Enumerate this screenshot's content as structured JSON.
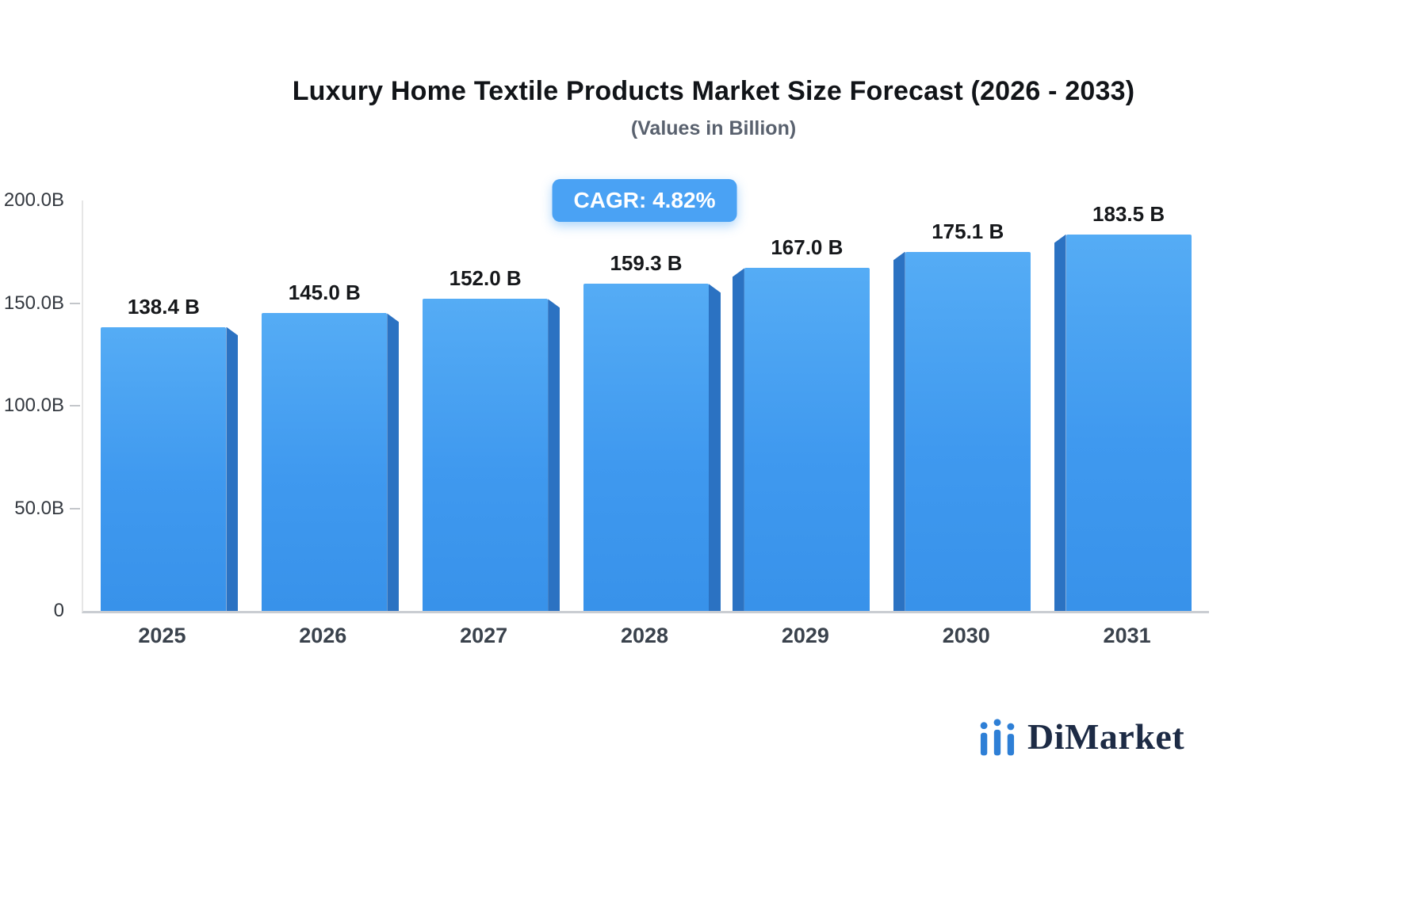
{
  "title": "Luxury Home Textile Products Market Size Forecast (2026 - 2033)",
  "subtitle": "(Values in Billion)",
  "cagr_badge": "CAGR: 4.82%",
  "brand": {
    "name": "DiMarket"
  },
  "colors": {
    "bar_main": "#3F99EF",
    "bar_side": "#2B72C2",
    "badge_bg": "#4AA2F4",
    "axis_line": "#C9CDD2",
    "brand_blue": "#2E7FD6",
    "brand_navy": "#1D2B45"
  },
  "chart_data": {
    "type": "bar",
    "title": "Luxury Home Textile Products Market Size Forecast (2026 - 2033)",
    "subtitle": "(Values in Billion)",
    "categories": [
      "2025",
      "2026",
      "2027",
      "2028",
      "2029",
      "2030",
      "2031"
    ],
    "values": [
      138.4,
      145.0,
      152.0,
      159.3,
      167.0,
      175.1,
      183.5
    ],
    "labels": [
      "138.4 B",
      "145.0 B",
      "152.0 B",
      "159.3 B",
      "167.0 B",
      "175.1 B",
      "183.5 B"
    ],
    "xlabel": "",
    "ylabel": "",
    "ylim": [
      0,
      200
    ],
    "yticks": [
      {
        "value": 200,
        "label": "200.0B"
      },
      {
        "value": 150,
        "label": "150.0B"
      },
      {
        "value": 100,
        "label": "100.0B"
      },
      {
        "value": 50,
        "label": "50.0B"
      },
      {
        "value": 0,
        "label": "0"
      }
    ],
    "grid": false,
    "legend": false,
    "annotation": "CAGR: 4.82%"
  }
}
